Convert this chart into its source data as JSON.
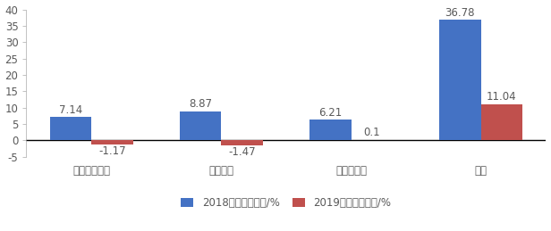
{
  "categories": [
    "现价工业产値",
    "销售收入",
    "出口交货値",
    "利润"
  ],
  "series_2018": [
    7.14,
    8.87,
    6.21,
    36.78
  ],
  "series_2019": [
    -1.17,
    -1.47,
    0.1,
    11.04
  ],
  "color_2018": "#4472C4",
  "color_2019": "#C0504D",
  "legend_2018": "2018年上半年增幅/%",
  "legend_2019": "2019年上半年增幅/%",
  "text_color": "#595959",
  "ylim": [
    -5,
    40
  ],
  "yticks": [
    -5,
    0,
    5,
    10,
    15,
    20,
    25,
    30,
    35,
    40
  ],
  "bar_width": 0.32,
  "label_fontsize": 8.5,
  "tick_fontsize": 8.5,
  "legend_fontsize": 8.5,
  "background_color": "#ffffff"
}
